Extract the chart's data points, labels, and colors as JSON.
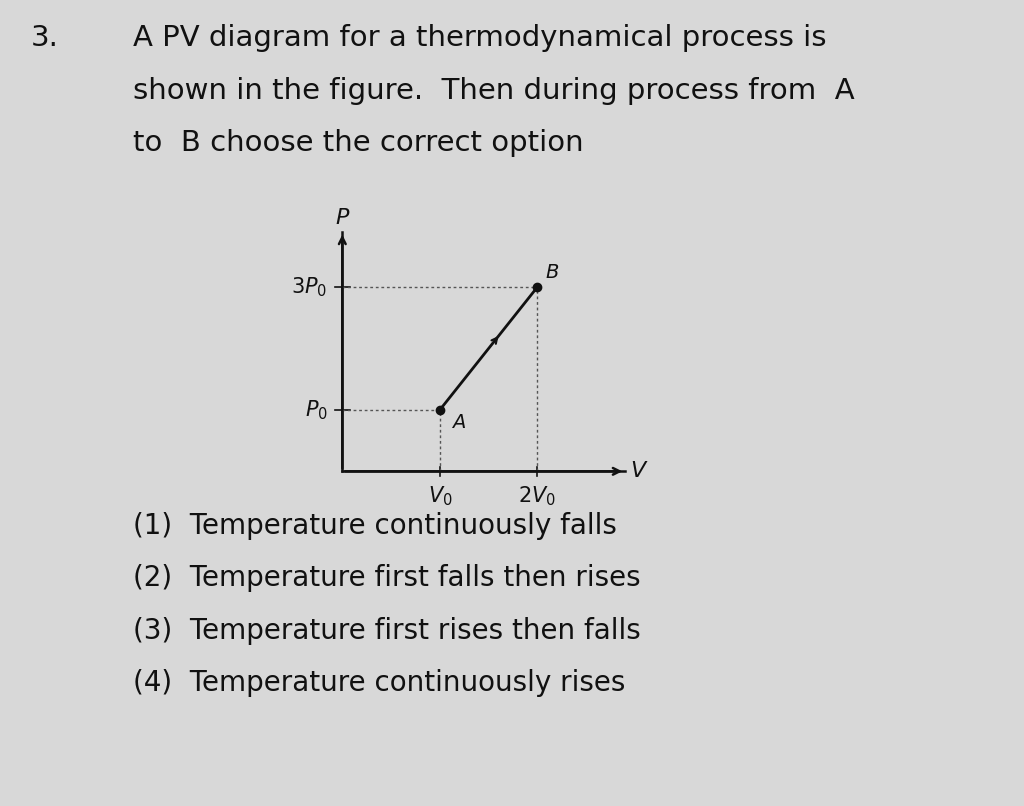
{
  "title_number": "3.",
  "title_lines": [
    "A PV diagram for a thermodynamical process is",
    "shown in the figure.  Then during process from  A",
    "to  B choose the correct option"
  ],
  "options": [
    "(1)  Temperature continuously falls",
    "(2)  Temperature first falls then rises",
    "(3)  Temperature first rises then falls",
    "(4)  Temperature continuously rises"
  ],
  "point_A": [
    1,
    1
  ],
  "point_B": [
    2,
    3
  ],
  "xlabel": "V",
  "ylabel": "P",
  "background_color": "#d8d8d8",
  "text_color": "#111111",
  "line_color": "#111111",
  "dot_color": "#111111",
  "dotted_line_color": "#555555",
  "axis_color": "#111111",
  "title_fontsize": 21,
  "option_fontsize": 20,
  "diagram_label_fontsize": 15,
  "axis_label_fontsize": 16
}
